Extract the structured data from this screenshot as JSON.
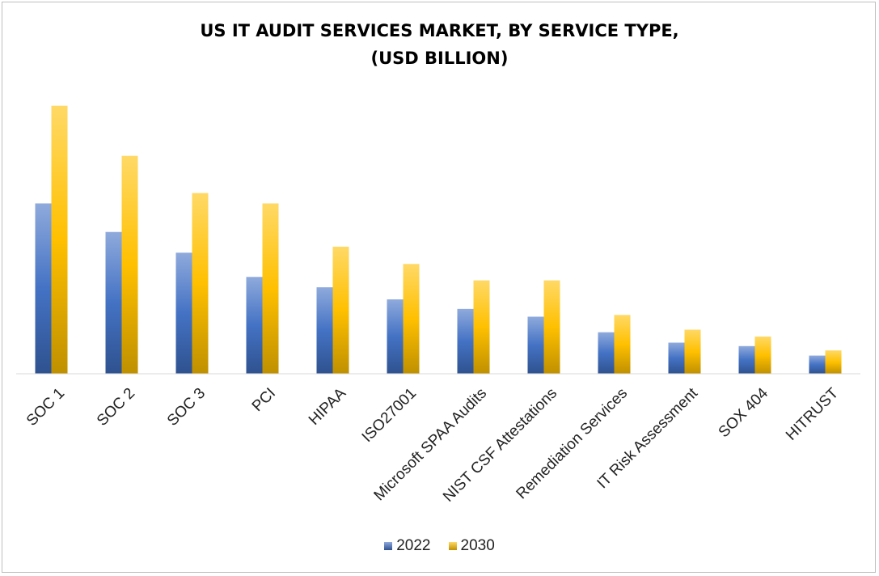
{
  "title_line1": "US IT AUDIT SERVICES MARKET, BY SERVICE TYPE,",
  "title_line2": "(USD BILLION)",
  "colors": {
    "series_2022": "#4472c4",
    "series_2030": "#ffc000"
  },
  "chart_data": {
    "type": "bar",
    "title": "US IT AUDIT SERVICES MARKET, BY SERVICE TYPE, (USD BILLION)",
    "xlabel": "",
    "ylabel": "",
    "y_axis_shown": false,
    "grid": false,
    "legend_position": "bottom",
    "categories": [
      "SOC 1",
      "SOC 2",
      "SOC 3",
      "PCI",
      "HIPAA",
      "ISO27001",
      "Microsoft SPAA Audits",
      "NIST CSF Attestations",
      "Remediation Services",
      "IT Risk Assessment",
      "SOX 404",
      "HITRUST"
    ],
    "series": [
      {
        "name": "2022",
        "values": [
          19.7,
          16.4,
          14.0,
          11.2,
          10.0,
          8.6,
          7.5,
          6.6,
          4.8,
          3.6,
          3.2,
          2.1
        ]
      },
      {
        "name": "2030",
        "values": [
          31.0,
          25.2,
          20.9,
          19.7,
          14.7,
          12.7,
          10.8,
          10.8,
          6.8,
          5.1,
          4.3,
          2.7
        ]
      }
    ],
    "ylim": [
      0,
      32
    ]
  }
}
